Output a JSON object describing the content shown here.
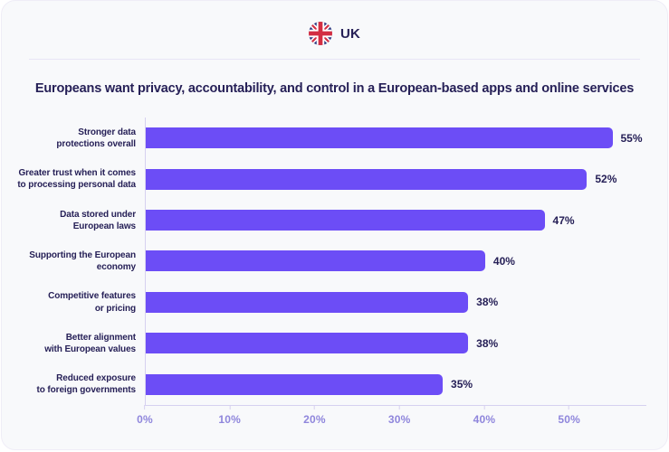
{
  "header": {
    "country_label": "UK",
    "flag_icon": "uk-flag-icon"
  },
  "colors": {
    "bar": "#6C4DF6",
    "card_bg": "#F8F9FB",
    "page_bg": "#FFFFFF",
    "text": "#262057",
    "tick_label": "#8F86DC",
    "axis_line": "#D6D1F0",
    "divider": "#E8E5F5",
    "flag_blue": "#28337E",
    "flag_red": "#D32E43",
    "flag_white": "#FFFFFF"
  },
  "chart_data": {
    "type": "bar",
    "orientation": "horizontal",
    "title": "Europeans want privacy, accountability, and control in a European-based apps and online services",
    "categories": [
      "Stronger data\nprotections overall",
      "Greater trust when it comes\nto processing personal data",
      "Data stored under\nEuropean laws",
      "Supporting the European\neconomy",
      "Competitive features\nor pricing",
      "Better alignment\nwith European values",
      "Reduced exposure\nto foreign governments"
    ],
    "values": [
      55,
      52,
      47,
      40,
      38,
      38,
      35
    ],
    "value_labels": [
      "55%",
      "52%",
      "47%",
      "40%",
      "38%",
      "38%",
      "35%"
    ],
    "xlabel": "",
    "ylabel": "",
    "xlim": [
      0,
      59
    ],
    "x_ticks": [
      {
        "value": 0,
        "label": "0%"
      },
      {
        "value": 10,
        "label": "10%"
      },
      {
        "value": 20,
        "label": "20%"
      },
      {
        "value": 30,
        "label": "30%"
      },
      {
        "value": 40,
        "label": "40%"
      },
      {
        "value": 50,
        "label": "50%"
      }
    ],
    "grid": false,
    "legend": false
  }
}
